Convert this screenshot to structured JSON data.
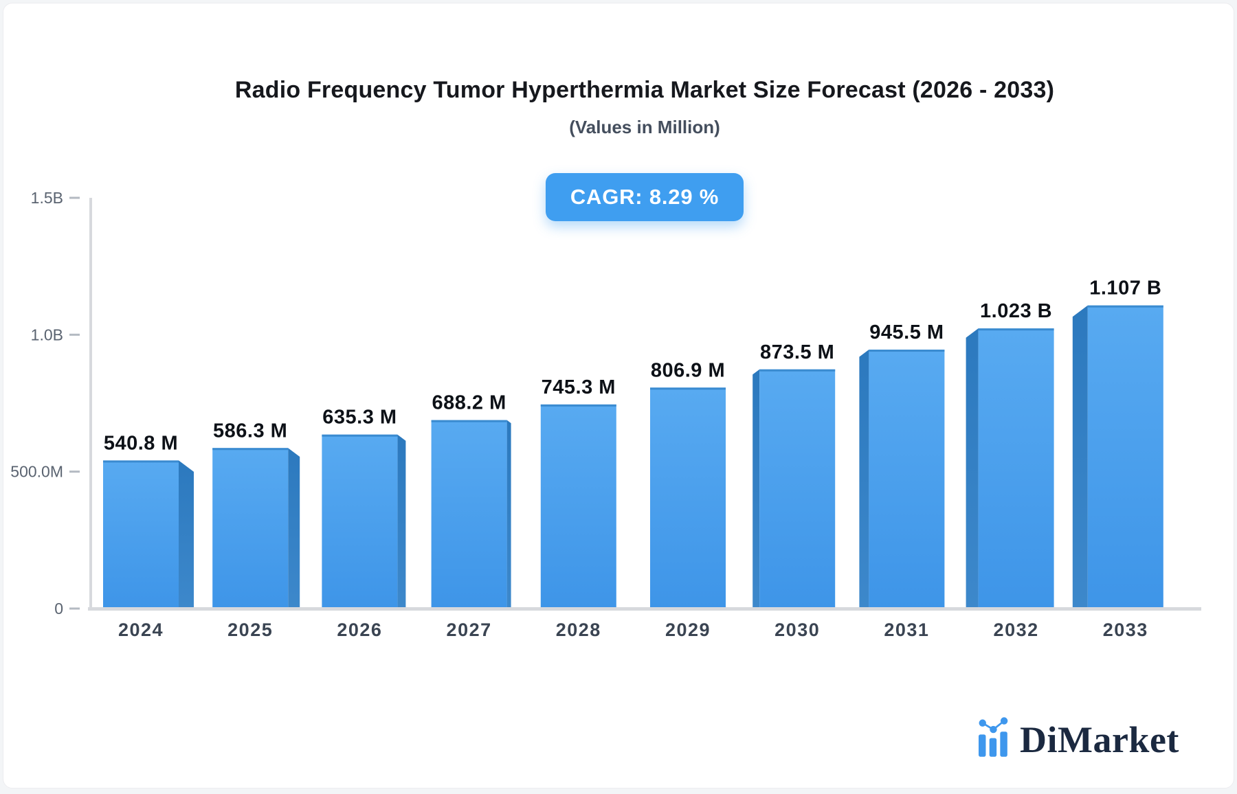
{
  "header": {
    "title": "Radio Frequency Tumor Hyperthermia Market Size Forecast (2026 - 2033)",
    "subtitle": "(Values in Million)"
  },
  "cagr_badge": {
    "label": "CAGR: 8.29 %",
    "background": "#3f9ef0",
    "text_color": "#ffffff"
  },
  "chart_data": {
    "type": "bar",
    "title": "Radio Frequency Tumor Hyperthermia Market Size Forecast (2026 - 2033)",
    "subtitle": "(Values in Million)",
    "categories": [
      "2024",
      "2025",
      "2026",
      "2027",
      "2028",
      "2029",
      "2030",
      "2031",
      "2032",
      "2033"
    ],
    "values": [
      540.8,
      586.3,
      635.3,
      688.2,
      745.3,
      806.9,
      873.5,
      945.5,
      1023,
      1107
    ],
    "value_labels": [
      "540.8 M",
      "586.3 M",
      "635.3 M",
      "688.2 M",
      "745.3 M",
      "806.9 M",
      "873.5 M",
      "945.5 M",
      "1.023 B",
      "1.107 B"
    ],
    "xlabel": "",
    "ylabel": "",
    "ylim": [
      0,
      1500
    ],
    "yticks": [
      {
        "value": 0,
        "label": "0"
      },
      {
        "value": 500,
        "label": "500.0M"
      },
      {
        "value": 1000,
        "label": "1.0B"
      },
      {
        "value": 1500,
        "label": "1.5B"
      }
    ],
    "grid": false,
    "legend": false,
    "style_3d": true,
    "colors": {
      "bar_face_top": "#58aaf1",
      "bar_face_bottom": "#3e95e8",
      "bar_top_edge": "#3a8bd0",
      "bar_side_top": "#2c79be",
      "bar_side_bottom": "#3d88cb",
      "axis_line": "#d7d9dd",
      "tick_mark": "#b4bac2",
      "ytick_text": "#5a6370",
      "xtick_text": "#3a4452",
      "value_label_text": "#0d1117"
    }
  },
  "branding": {
    "name": "DiMarket",
    "icon": "bar-chart-logo-icon",
    "icon_color": "#3e97ed",
    "text_color": "#1b2940"
  }
}
